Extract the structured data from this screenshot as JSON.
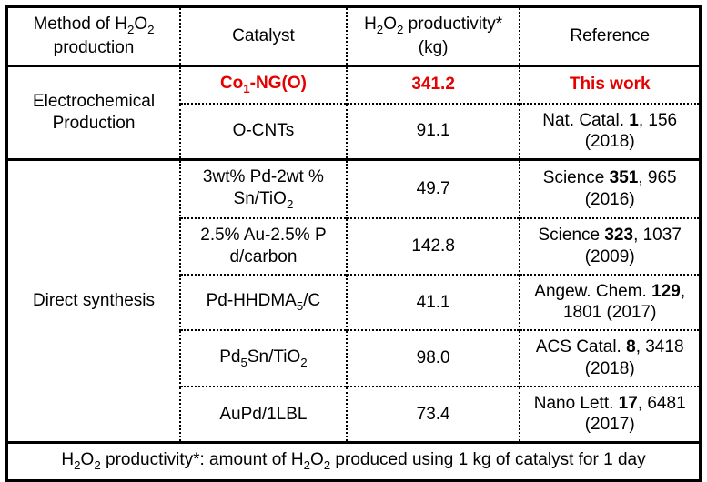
{
  "table": {
    "type": "table",
    "background_color": "#ffffff",
    "border_color": "#000000",
    "text_color": "#000000",
    "highlight_color": "#e60000",
    "fontsize": 19,
    "columns": [
      {
        "label_html": "Method of H<sub>2</sub>O<sub>2</sub> production",
        "width_pct": 25
      },
      {
        "label_html": "Catalyst",
        "width_pct": 24
      },
      {
        "label_html": "H<sub>2</sub>O<sub>2</sub> productivity* (kg)",
        "width_pct": 25
      },
      {
        "label_html": "Reference",
        "width_pct": 26
      }
    ],
    "sections": [
      {
        "method": "Electrochemical Production",
        "rows": [
          {
            "catalyst_html": "Co<sub>1</sub>-NG(O)",
            "productivity": "341.2",
            "reference_html": "This work",
            "highlight": true
          },
          {
            "catalyst_html": "O-CNTs",
            "productivity": "91.1",
            "reference_html": "Nat. Catal. <b>1</b>, 156 (2018)",
            "highlight": false
          }
        ]
      },
      {
        "method": "Direct synthesis",
        "rows": [
          {
            "catalyst_html": "3wt% Pd-2wt % Sn/TiO<sub>2</sub>",
            "productivity": "49.7",
            "reference_html": "Science <b>351</b>, 965 (2016)",
            "highlight": false
          },
          {
            "catalyst_html": "2.5% Au-2.5% P d/carbon",
            "productivity": "142.8",
            "reference_html": "Science <b>323</b>, 1037 (2009)",
            "highlight": false
          },
          {
            "catalyst_html": "Pd-HHDMA<sub>5</sub>/C",
            "productivity": "41.1",
            "reference_html": "Angew. Chem. <b>129</b>, 1801 (2017)",
            "highlight": false
          },
          {
            "catalyst_html": "Pd<sub>5</sub>Sn/TiO<sub>2</sub>",
            "productivity": "98.0",
            "reference_html": "ACS Catal. <b>8</b>, 3418 (2018)",
            "highlight": false
          },
          {
            "catalyst_html": "AuPd/1LBL",
            "productivity": "73.4",
            "reference_html": "Nano Lett. <b>17</b>, 6481 (2017)",
            "highlight": false
          }
        ]
      }
    ],
    "footnote_html": "H<sub>2</sub>O<sub>2</sub> productivity*: amount of H<sub>2</sub>O<sub>2</sub> produced using 1 kg of catalyst for 1 day"
  }
}
